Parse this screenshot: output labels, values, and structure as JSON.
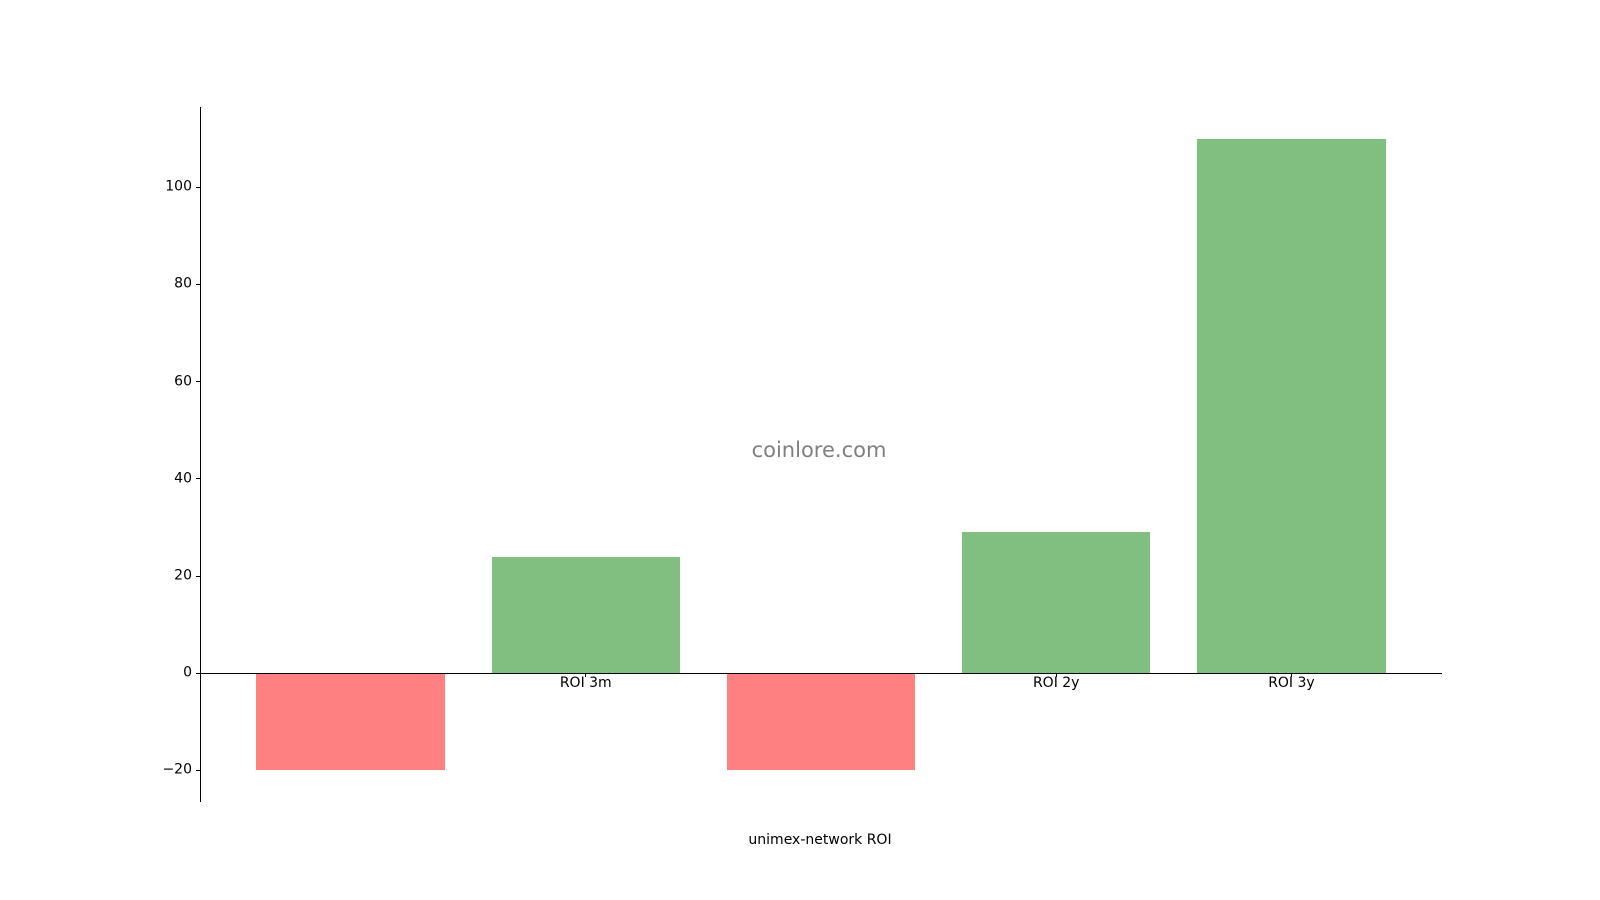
{
  "watermark": "coinlore.com",
  "chart_data": {
    "type": "bar",
    "title": "unimex-network ROI",
    "xlabel": "",
    "ylabel": "",
    "categories": [
      "",
      "ROI 3m",
      "",
      "ROI 2y",
      "ROI 3y"
    ],
    "values": [
      -20,
      24,
      -20,
      29,
      110
    ],
    "bar_colors": [
      "#ff8080",
      "#80bf80",
      "#ff8080",
      "#80bf80",
      "#80bf80"
    ],
    "yticks": [
      100,
      80,
      60,
      40,
      20,
      0,
      -20
    ],
    "ytick_labels": [
      "100",
      "80",
      "60",
      "40",
      "20",
      "0",
      "−20"
    ],
    "ylim": [
      -26.5,
      116.5
    ],
    "xlim": [
      -0.64,
      4.64
    ],
    "bar_width": 0.8,
    "grid": false,
    "legend": false,
    "legend_position": null,
    "colors": {
      "positive": "#80bf80",
      "negative": "#ff8080",
      "axis": "#000000",
      "tick_text": "#000000",
      "title_text": "#000000",
      "watermark": "#808080",
      "background": "#ffffff"
    }
  }
}
